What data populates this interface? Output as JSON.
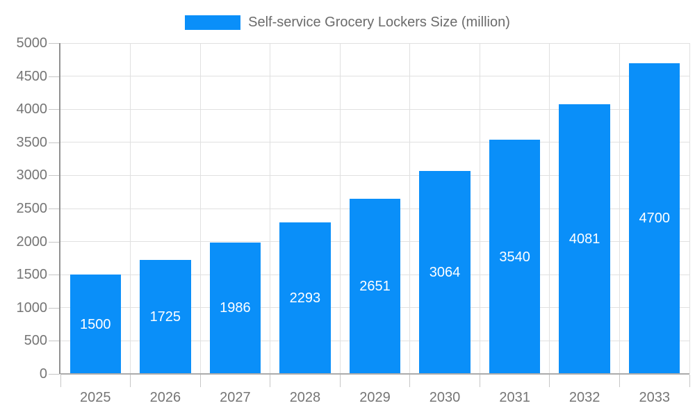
{
  "chart_data": {
    "type": "bar",
    "title": "Self-service Grocery Lockers Size (million)",
    "legend_label": "Self-service Grocery Lockers Size (million)",
    "legend_position": "top",
    "categories": [
      "2025",
      "2026",
      "2027",
      "2028",
      "2029",
      "2030",
      "2031",
      "2032",
      "2033"
    ],
    "values": [
      1500,
      1725,
      1986,
      2293,
      2651,
      3064,
      3540,
      4081,
      4700
    ],
    "xlabel": "",
    "ylabel": "",
    "ylim": [
      0,
      5000
    ],
    "ytick_step": 500,
    "grid": true,
    "value_labels": "centered inside bars",
    "colors": {
      "bar": "#0a8ff9",
      "value_label": "#ffffff",
      "axis_text": "#757575",
      "legend_text": "#6b6b6b",
      "grid": "#e0e0e0",
      "axis_line_y": "#919191",
      "axis_line_x": "#ababab",
      "tick": "#c6c6c6",
      "background": "#ffffff"
    }
  }
}
